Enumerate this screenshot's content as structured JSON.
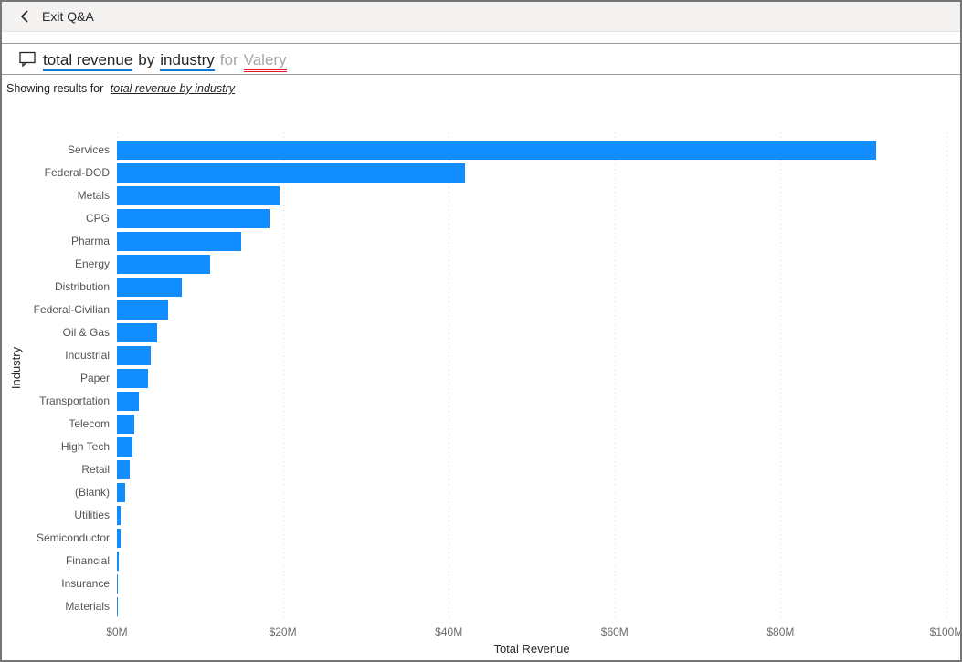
{
  "header": {
    "exit_label": "Exit Q&A",
    "back_icon": "chevron-left-icon"
  },
  "qa_box": {
    "icon": "speech-bubble-icon",
    "segments": [
      {
        "text": "total revenue",
        "style": "term"
      },
      {
        "text": "by",
        "style": "plain"
      },
      {
        "text": "industry",
        "style": "term"
      },
      {
        "text": "for",
        "style": "muted"
      },
      {
        "text": "Valery",
        "style": "error"
      }
    ]
  },
  "results": {
    "prefix": "Showing results for",
    "query": "total revenue by industry"
  },
  "chart_data": {
    "type": "bar",
    "orientation": "horizontal",
    "title": "",
    "xlabel": "Total Revenue",
    "ylabel": "Industry",
    "xlim_millions": [
      0,
      100
    ],
    "x_tick_labels": [
      "$0M",
      "$20M",
      "$40M",
      "$60M",
      "$80M",
      "$100M"
    ],
    "grid": "vertical-dotted",
    "legend": "none",
    "categories": [
      "Services",
      "Federal-DOD",
      "Metals",
      "CPG",
      "Pharma",
      "Energy",
      "Distribution",
      "Federal-Civilian",
      "Oil & Gas",
      "Industrial",
      "Paper",
      "Transportation",
      "Telecom",
      "High Tech",
      "Retail",
      "(Blank)",
      "Utilities",
      "Semiconductor",
      "Financial",
      "Insurance",
      "Materials"
    ],
    "values_millions": [
      91.5,
      42.0,
      19.6,
      18.4,
      15.0,
      11.2,
      7.8,
      6.2,
      4.8,
      4.1,
      3.7,
      2.6,
      2.1,
      1.9,
      1.5,
      1.0,
      0.45,
      0.4,
      0.25,
      0.15,
      0.12
    ],
    "bar_color": "#118DFF"
  },
  "colors": {
    "bar": "#118DFF",
    "header_bg": "#F3F2F1",
    "term_underline": "#0B79D5",
    "error_underline": "#E81123",
    "window_border": "#767676",
    "gridline": "#D8D8D8"
  }
}
